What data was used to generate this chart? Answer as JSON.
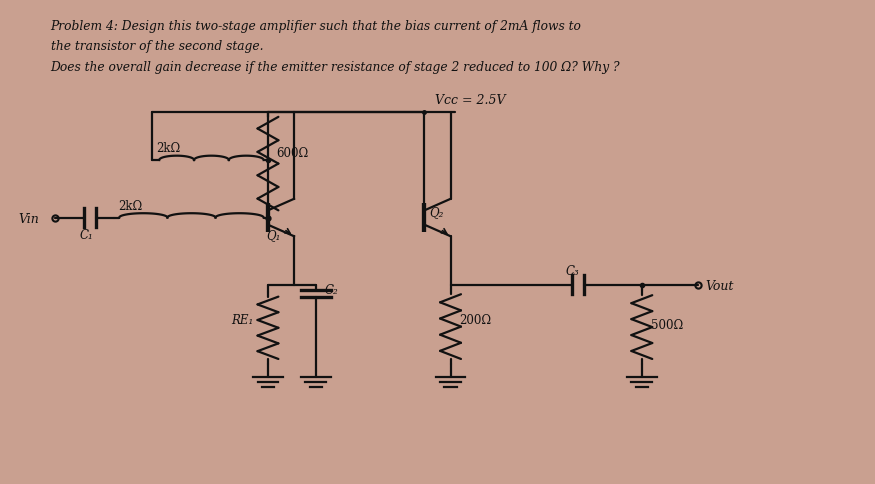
{
  "bg_color": "#c9a090",
  "paper_color": "#dfc8bc",
  "line_color": "#111111",
  "text_color": "#111111",
  "title_line1": "Problem 4: Design this two-stage amplifier such that the bias current of 2mA flows to",
  "title_line2": "the transistor of the second stage.",
  "title_line3": "Does the overall gain decrease if the emitter resistance of stage 2 reduced to 100 Ω? Why ?",
  "vcc_label": "Vcc = 2.5V",
  "r1_label": "2kΩ",
  "r2_label": "2kΩ",
  "r3_label": "600Ω",
  "r4_label": "200Ω",
  "r5_label": "500Ω",
  "re1_label": "RE₁",
  "c1_label": "C₁",
  "c2_label": "C₂",
  "c3_label": "C₃",
  "q1_label": "Q₁",
  "q2_label": "Q₂",
  "vin_label": "Vin",
  "vout_label": "Vout",
  "figsize": [
    8.75,
    4.85
  ],
  "dpi": 100
}
